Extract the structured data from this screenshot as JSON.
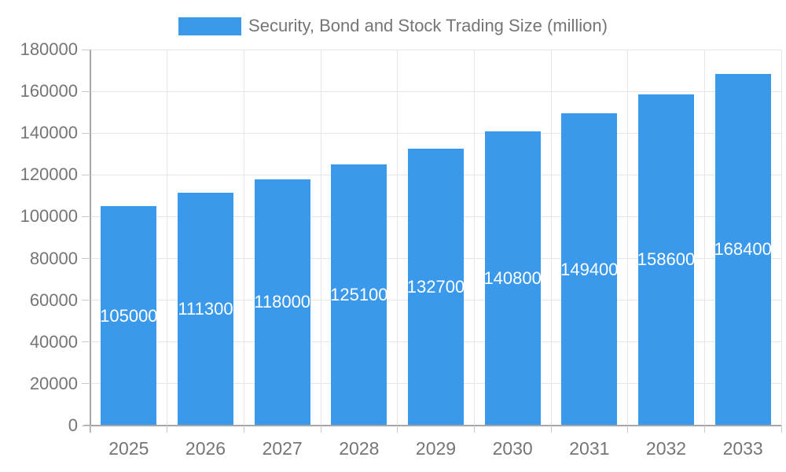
{
  "legend": {
    "label": "Security, Bond and Stock Trading Size (million)"
  },
  "chart_data": {
    "type": "bar",
    "title": "Security, Bond and Stock Trading Size (million)",
    "categories": [
      "2025",
      "2026",
      "2027",
      "2028",
      "2029",
      "2030",
      "2031",
      "2032",
      "2033"
    ],
    "values": [
      105000,
      111300,
      118000,
      125100,
      132700,
      140800,
      149400,
      158600,
      168400
    ],
    "xlabel": "",
    "ylabel": "",
    "ylim": [
      0,
      180000
    ],
    "yticks": [
      0,
      20000,
      40000,
      60000,
      80000,
      100000,
      120000,
      140000,
      160000,
      180000
    ],
    "grid": "both",
    "legend_position": "top",
    "bar_value_labels_inside": true,
    "colors": {
      "bar": "#3B99EC",
      "grid_line": "#E6E6E6",
      "axis_line": "#A6A6A6",
      "tick_line": "#C9C9C9",
      "axis_text": "#757575",
      "bar_label_text": "#FFFFFF",
      "background": "#FFFFFF"
    }
  }
}
